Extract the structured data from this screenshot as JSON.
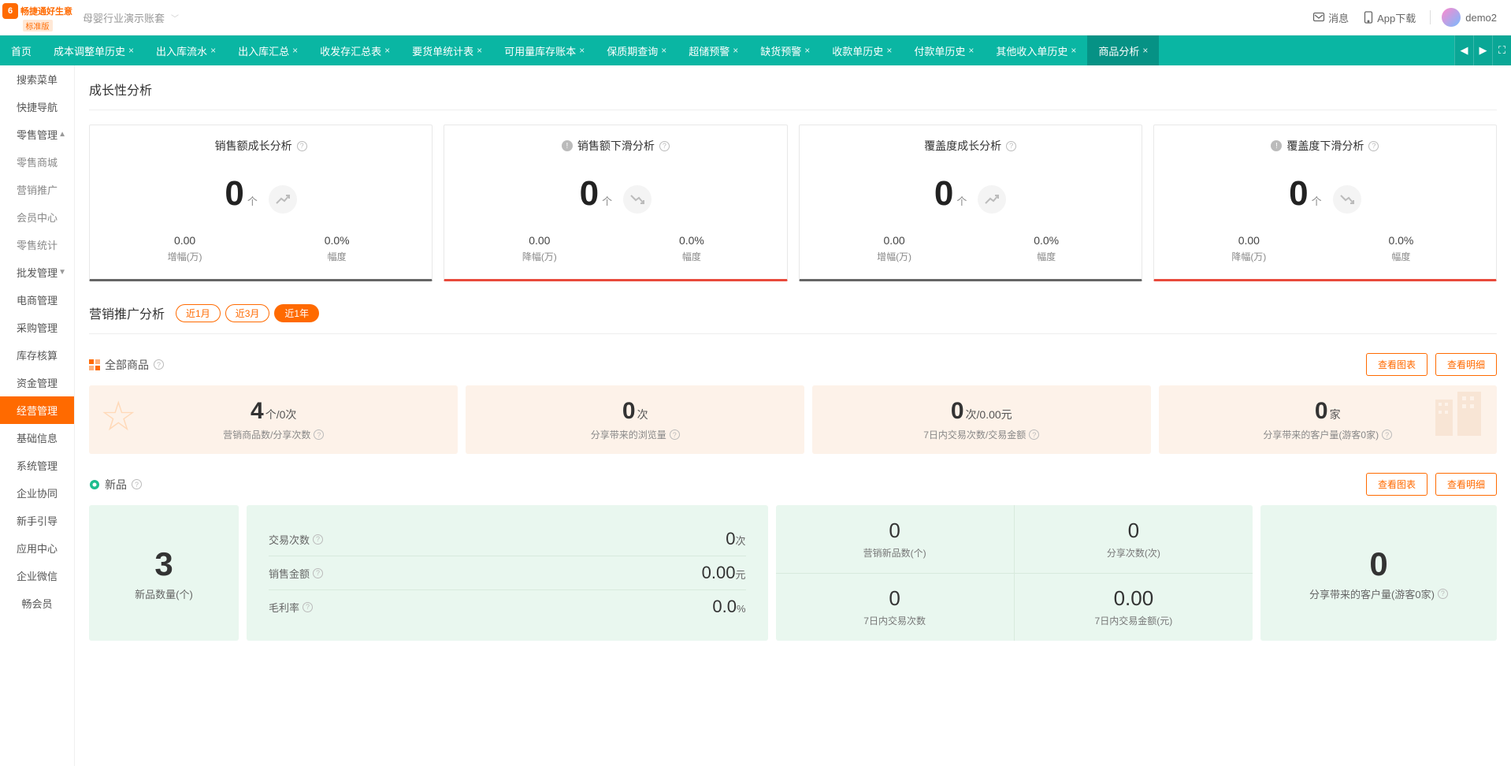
{
  "header": {
    "logo_text": "畅捷通好生意",
    "logo_badge": "标准版",
    "account": "母婴行业演示账套",
    "msg_label": "消息",
    "app_label": "App下载",
    "user_name": "demo2"
  },
  "tabs": {
    "items": [
      {
        "label": "首页",
        "closable": false
      },
      {
        "label": "成本调整单历史",
        "closable": true
      },
      {
        "label": "出入库流水",
        "closable": true
      },
      {
        "label": "出入库汇总",
        "closable": true
      },
      {
        "label": "收发存汇总表",
        "closable": true
      },
      {
        "label": "要货单统计表",
        "closable": true
      },
      {
        "label": "可用量库存账本",
        "closable": true
      },
      {
        "label": "保质期查询",
        "closable": true
      },
      {
        "label": "超储预警",
        "closable": true
      },
      {
        "label": "缺货预警",
        "closable": true
      },
      {
        "label": "收款单历史",
        "closable": true
      },
      {
        "label": "付款单历史",
        "closable": true
      },
      {
        "label": "其他收入单历史",
        "closable": true
      },
      {
        "label": "商品分析",
        "closable": true,
        "active": true
      }
    ]
  },
  "sidebar": {
    "items": [
      {
        "label": "搜索菜单"
      },
      {
        "label": "快捷导航"
      },
      {
        "label": "零售管理",
        "arrow": "▲"
      },
      {
        "label": "零售商城",
        "sub": true
      },
      {
        "label": "营销推广",
        "sub": true
      },
      {
        "label": "会员中心",
        "sub": true
      },
      {
        "label": "零售统计",
        "sub": true
      },
      {
        "label": "批发管理",
        "arrow": "▼"
      },
      {
        "label": "电商管理"
      },
      {
        "label": "采购管理"
      },
      {
        "label": "库存核算"
      },
      {
        "label": "资金管理"
      },
      {
        "label": "经营管理",
        "active": true
      },
      {
        "label": "基础信息"
      },
      {
        "label": "系统管理"
      },
      {
        "label": "企业协同"
      },
      {
        "label": "新手引导"
      },
      {
        "label": "应用中心"
      },
      {
        "label": "企业微信"
      },
      {
        "label": "畅会员"
      }
    ]
  },
  "growth": {
    "section_title": "成长性分析",
    "cards": [
      {
        "title": "销售额成长分析",
        "warn": false,
        "num": "0",
        "unit": "个",
        "trend": "up",
        "stat1_v": "0.00",
        "stat1_l": "增幅(万)",
        "stat2_v": "0.0%",
        "stat2_l": "幅度",
        "border": "gray"
      },
      {
        "title": "销售额下滑分析",
        "warn": true,
        "num": "0",
        "unit": "个",
        "trend": "down",
        "stat1_v": "0.00",
        "stat1_l": "降幅(万)",
        "stat2_v": "0.0%",
        "stat2_l": "幅度",
        "border": "red"
      },
      {
        "title": "覆盖度成长分析",
        "warn": false,
        "num": "0",
        "unit": "个",
        "trend": "up",
        "stat1_v": "0.00",
        "stat1_l": "增幅(万)",
        "stat2_v": "0.0%",
        "stat2_l": "幅度",
        "border": "gray"
      },
      {
        "title": "覆盖度下滑分析",
        "warn": true,
        "num": "0",
        "unit": "个",
        "trend": "down",
        "stat1_v": "0.00",
        "stat1_l": "降幅(万)",
        "stat2_v": "0.0%",
        "stat2_l": "幅度",
        "border": "red"
      }
    ]
  },
  "marketing": {
    "title": "营销推广分析",
    "pills": [
      {
        "label": "近1月"
      },
      {
        "label": "近3月"
      },
      {
        "label": "近1年",
        "active": true
      }
    ],
    "all_goods": {
      "title": "全部商品",
      "view_chart": "查看图表",
      "view_detail": "查看明细",
      "c1_big": "4",
      "c1_big_suffix": "个/0次",
      "c1_label": "营销商品数/分享次数",
      "c2_big": "0",
      "c2_big_suffix": "次",
      "c2_label": "分享带来的浏览量",
      "c3_big": "0",
      "c3_big_suffix": "次/0.00元",
      "c3_label": "7日内交易次数/交易金额",
      "c4_big": "0",
      "c4_big_suffix": "家",
      "c4_label": "分享带来的客户量(游客0家)"
    },
    "new_prod": {
      "title": "新品",
      "view_chart": "查看图表",
      "view_detail": "查看明细",
      "left_big": "3",
      "left_label": "新品数量(个)",
      "mid_rows": [
        {
          "k": "交易次数",
          "v": "0",
          "u": "次"
        },
        {
          "k": "销售金额",
          "v": "0.00",
          "u": "元"
        },
        {
          "k": "毛利率",
          "v": "0.0",
          "u": "%"
        }
      ],
      "grid": [
        {
          "v": "0",
          "l": "营销新品数(个)"
        },
        {
          "v": "0",
          "l": "分享次数(次)"
        },
        {
          "v": "0",
          "l": "7日内交易次数"
        },
        {
          "v": "0.00",
          "l": "7日内交易金额(元)"
        }
      ],
      "right_big": "0",
      "right_label": "分享带来的客户量(游客0家)"
    }
  }
}
